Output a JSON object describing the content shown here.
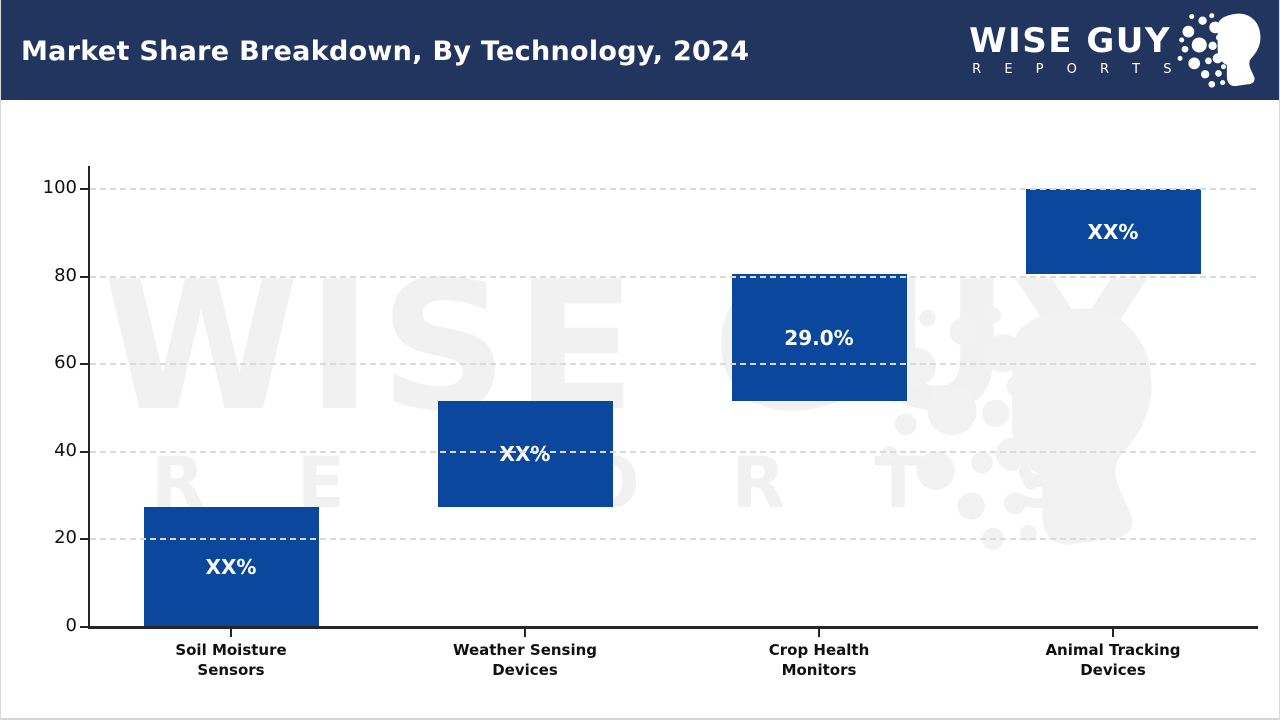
{
  "header": {
    "title": "Market Share Breakdown, By Technology, 2024",
    "logo": {
      "line1": "WISE GUY",
      "line2": "R E P O R T S"
    }
  },
  "watermark": {
    "line1": "WISE GUY",
    "line2": "REPORTS"
  },
  "chart_data": {
    "type": "bar",
    "variant": "waterfall",
    "title": "Market Share Breakdown, By Technology, 2024",
    "categories": [
      "Soil Moisture Sensors",
      "Weather Sensing Devices",
      "Crop Health Monitors",
      "Animal Tracking Devices"
    ],
    "category_lines": [
      [
        "Soil Moisture",
        "Sensors"
      ],
      [
        "Weather Sensing",
        "Devices"
      ],
      [
        "Crop Health",
        "Monitors"
      ],
      [
        "Animal Tracking",
        "Devices"
      ]
    ],
    "segments": [
      {
        "category": "Soil Moisture Sensors",
        "start": 0,
        "end": 27.5,
        "value_shown": "XX%",
        "label": "XX%"
      },
      {
        "category": "Weather Sensing Devices",
        "start": 27.5,
        "end": 51.5,
        "value_shown": "XX%",
        "label": "XX%"
      },
      {
        "category": "Crop Health Monitors",
        "start": 51.5,
        "end": 80.5,
        "value_shown": "29.0%",
        "label": "29.0%"
      },
      {
        "category": "Animal Tracking Devices",
        "start": 80.5,
        "end": 100.0,
        "value_shown": "XX%",
        "label": "XX%"
      }
    ],
    "yticks": [
      0,
      20,
      40,
      60,
      80,
      100
    ],
    "ylim": [
      0,
      105
    ],
    "xlabel": "",
    "ylabel": "",
    "grid": "horizontal-dashed",
    "legend": "none",
    "colors": {
      "bar": "#0b479d",
      "bar_label": "#ffffff",
      "grid": "#dadada",
      "axis": "#262626",
      "header_bg": "#21355e",
      "watermark": "#f1f1f1"
    }
  }
}
